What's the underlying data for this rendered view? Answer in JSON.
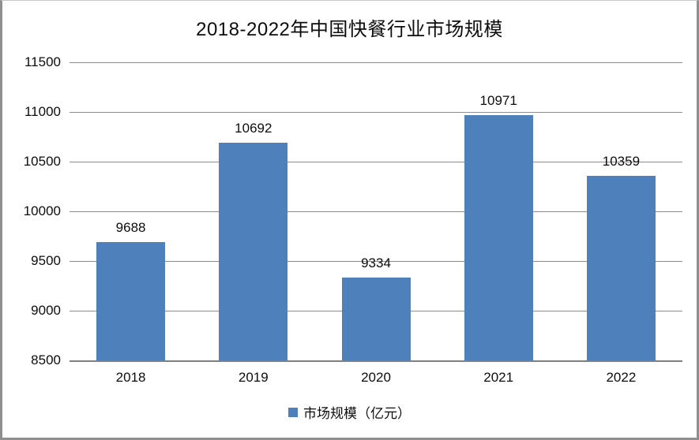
{
  "chart_data": {
    "type": "bar",
    "title": "2018-2022年中国快餐行业市场规模",
    "categories": [
      "2018",
      "2019",
      "2020",
      "2021",
      "2022"
    ],
    "series": [
      {
        "name": "市场规模（亿元）",
        "values": [
          9688,
          10692,
          9334,
          10971,
          10359
        ]
      }
    ],
    "ylim": [
      8500,
      11500
    ],
    "yticks": [
      8500,
      9000,
      9500,
      10000,
      10500,
      11000,
      11500
    ],
    "xlabel": "",
    "ylabel": "",
    "grid": true,
    "legend_position": "bottom",
    "data_labels": true,
    "bar_color": "#4e80bc",
    "gridline_color": "#8c8c8c"
  },
  "legend": {
    "label": "市场规模（亿元）"
  }
}
